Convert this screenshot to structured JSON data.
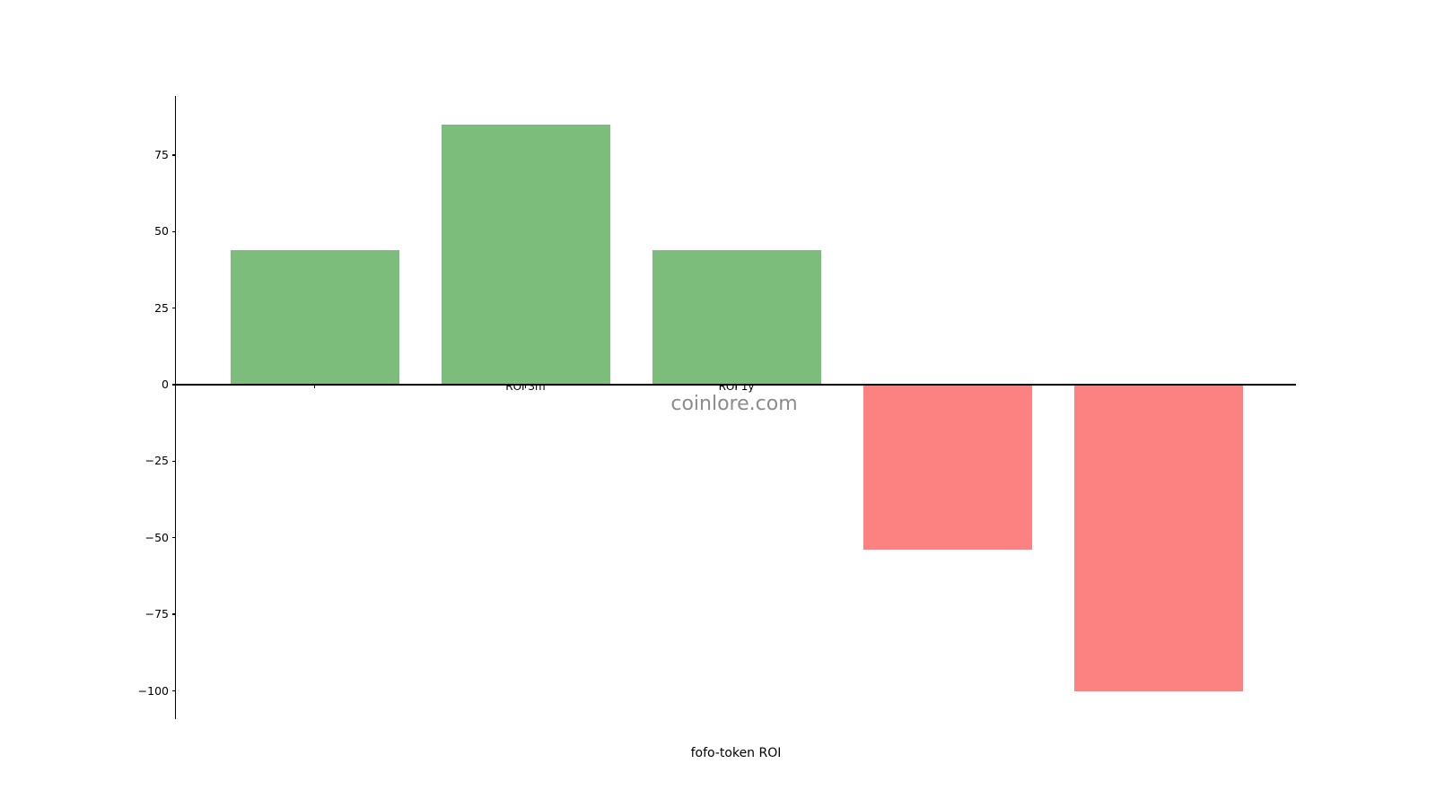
{
  "page": {
    "background_color": "#ffffff"
  },
  "watermark": {
    "text": "coinlore.com",
    "color": "#8c8c8c"
  },
  "chart_data": {
    "type": "bar",
    "title": "fofo-token ROI",
    "title_position": "bottom",
    "categories": [
      "",
      "ROI 3m",
      "ROI 1y",
      "",
      ""
    ],
    "values": [
      44,
      85,
      44,
      -54,
      -100
    ],
    "bar_colors": [
      "#7cbd7c",
      "#7cbd7c",
      "#7cbd7c",
      "#fc8181",
      "#fc8181"
    ],
    "positive_color": "#7cbd7c",
    "negative_color": "#fc8181",
    "yticks": [
      75,
      50,
      25,
      0,
      -25,
      -50,
      -75,
      -100
    ],
    "ytick_labels": [
      "75",
      "50",
      "25",
      "0",
      "−25",
      "−50",
      "−75",
      "−100"
    ],
    "ylim": [
      -109.5,
      94.5
    ],
    "xlabel": "fofo-token ROI",
    "ylabel": "",
    "grid": false,
    "legend": "none",
    "axis_color": "#000000",
    "tick_label_color": "#000000"
  }
}
